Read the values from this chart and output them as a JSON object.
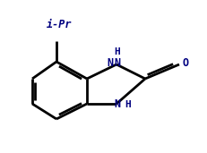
{
  "background_color": "#ffffff",
  "bond_color": "#000000",
  "text_color": "#000080",
  "bond_lw": 2.0,
  "figsize": [
    2.31,
    1.71
  ],
  "dpi": 100,
  "xlim": [
    0,
    2.31
  ],
  "ylim": [
    0,
    1.71
  ],
  "iPr_label": "i-Pr",
  "N_label": "N",
  "H_label": "H",
  "O_label": "O",
  "label_fontsize": 8.5,
  "label_fontfamily": "monospace"
}
